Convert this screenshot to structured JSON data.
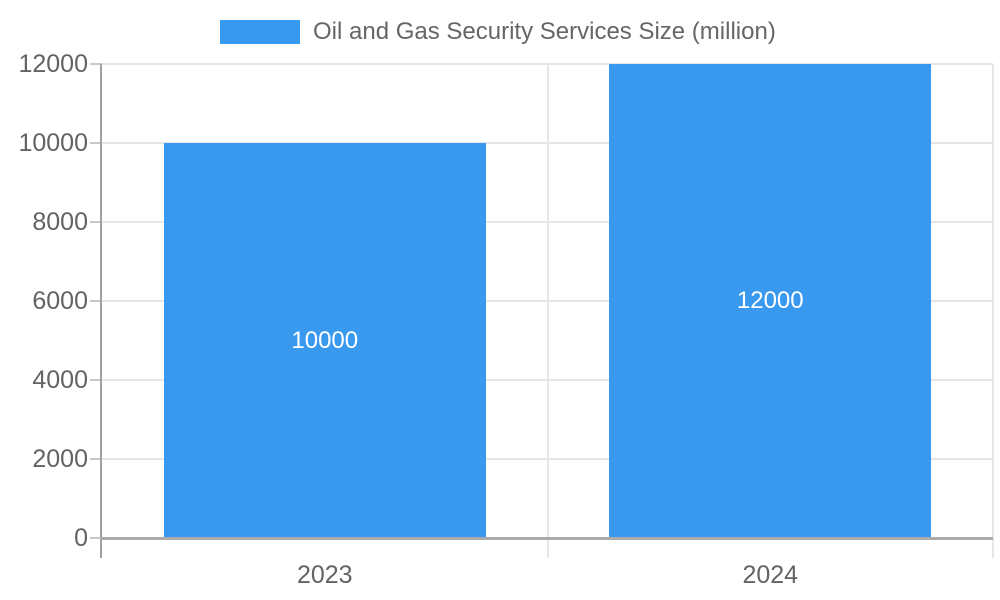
{
  "legend": {
    "label": "Oil and Gas Security Services Size (million)"
  },
  "colors": {
    "bar": "#3899ee",
    "bar_label_text": "#ffffff",
    "legend_text": "#666666",
    "axis_label_text": "#636363",
    "gridline": "#e6e6e6",
    "y_axis_line": "#a0a0a0",
    "baseline": "#ababab",
    "tick": "#c9c9c9"
  },
  "chart_data": {
    "type": "bar",
    "title": "",
    "categories": [
      "2023",
      "2024"
    ],
    "series": [
      {
        "name": "Oil and Gas Security Services Size (million)",
        "values": [
          10000,
          12000
        ]
      }
    ],
    "bar_value_labels": [
      "10000",
      "12000"
    ],
    "y_tick_labels": [
      "0",
      "2000",
      "4000",
      "6000",
      "8000",
      "10000",
      "12000"
    ],
    "yticks": [
      0,
      2000,
      4000,
      6000,
      8000,
      10000,
      12000
    ],
    "ylim": [
      0,
      12000
    ],
    "xlabel": "",
    "ylabel": "",
    "grid": true,
    "legend_position": "top"
  }
}
